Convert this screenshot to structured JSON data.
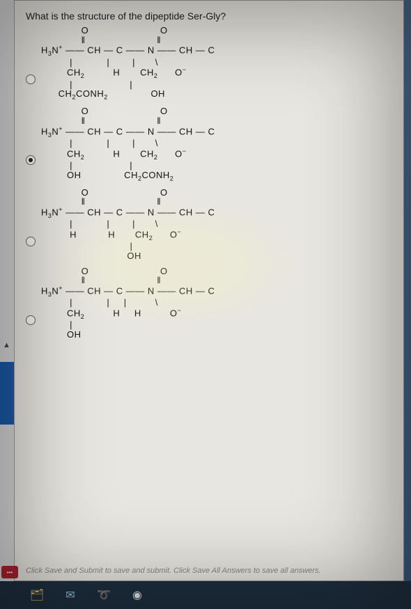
{
  "question": "What is the structure of the dipeptide Ser-Gly?",
  "selected_index": 1,
  "options": [
    {
      "lines": [
        "              O                         O",
        "              ‖                         ‖",
        "H₃N⁺ —— CH — C —— N —— CH — C",
        "          |            |        |       \\",
        "         CH₂          H       CH₂      O⁻",
        "          |                    |",
        "      CH₂CONH₂               OH"
      ]
    },
    {
      "lines": [
        "              O                         O",
        "              ‖                         ‖",
        "H₃N⁺ —— CH — C —— N —— CH — C",
        "          |            |        |       \\",
        "         CH₂          H       CH₂      O⁻",
        "          |                    |",
        "         OH               CH₂CONH₂"
      ]
    },
    {
      "lines": [
        "              O                         O",
        "              ‖                         ‖",
        "H₃N⁺ —— CH — C —— N —— CH — C",
        "          |            |        |       \\",
        "          H           H       CH₂      O⁻",
        "                               |",
        "                              OH"
      ]
    },
    {
      "lines": [
        "              O                         O",
        "              ‖                         ‖",
        "H₃N⁺ —— CH — C —— N —— CH — C",
        "          |            |     |          \\",
        "         CH₂          H     H          O⁻",
        "          |",
        "         OH"
      ]
    }
  ],
  "footer_text": "Click Save and Submit to save and submit. Click Save All Answers to save all answers.",
  "colors": {
    "page_bg": "#e8e6e0",
    "desktop_bg": "#3a5a7a",
    "text": "#111111",
    "muted": "#888888",
    "radio_border": "#666666"
  },
  "taskbar_icons": [
    {
      "name": "file-explorer",
      "glyph": "🗂",
      "color": "#f3c268"
    },
    {
      "name": "mail",
      "glyph": "✉",
      "color": "#9ac7e8"
    },
    {
      "name": "steam",
      "glyph": "➰",
      "color": "#cfd6db"
    },
    {
      "name": "chrome",
      "glyph": "◉",
      "color": "#e8e8e8"
    }
  ],
  "badge_text": "•••"
}
